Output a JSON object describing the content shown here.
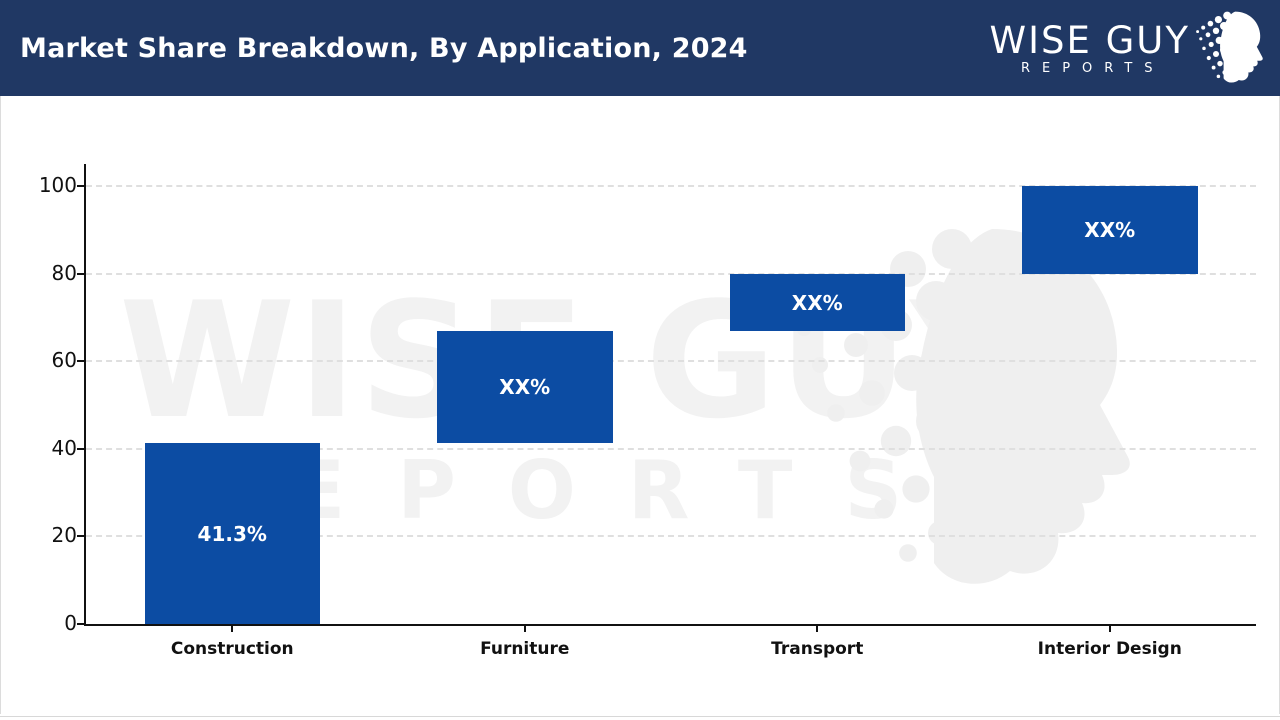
{
  "header": {
    "logo": {
      "line1": "WISE GUY",
      "line2": "REPORTS"
    }
  },
  "watermark": {
    "line1": "WISE GUY",
    "line2": "REPORTS"
  },
  "colors": {
    "header_bg": "#203864",
    "bar": "#0c4ca3",
    "axis": "#111111",
    "gridline": "#dfdfdf",
    "watermark": "#f2f2f2"
  },
  "chart_data": {
    "type": "bar",
    "subtype": "waterfall",
    "title": "Market Share Breakdown, By Application, 2024",
    "categories": [
      "Construction",
      "Furniture",
      "Transport",
      "Interior Design"
    ],
    "segments": [
      {
        "category": "Construction",
        "start": 0,
        "end": 41.3,
        "label": "41.3%"
      },
      {
        "category": "Furniture",
        "start": 41.3,
        "end": 66.9,
        "label": "XX%"
      },
      {
        "category": "Transport",
        "start": 66.9,
        "end": 79.8,
        "label": "XX%"
      },
      {
        "category": "Interior Design",
        "start": 79.8,
        "end": 100,
        "label": "XX%"
      }
    ],
    "yticks": [
      0,
      20,
      40,
      60,
      80,
      100
    ],
    "ylim": [
      0,
      105
    ],
    "xlabel": "",
    "ylabel": "",
    "grid": true,
    "gridline_style": "dashed",
    "legend": "none",
    "bar_color": "#0c4ca3",
    "value_label_color": "#ffffff"
  }
}
